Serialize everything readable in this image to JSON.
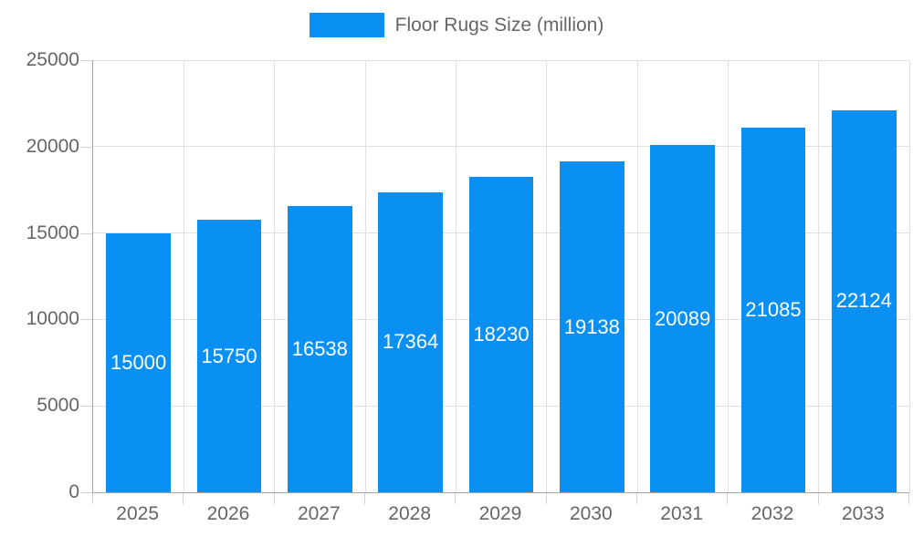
{
  "chart": {
    "legend": {
      "label": "Floor Rugs Size (million)"
    },
    "colors": {
      "bar": "#0a90f2",
      "grid": "#e0e0e0",
      "tick": "#d2d2d2",
      "axis": "#a6a6a6",
      "label_text": "#666666",
      "value_label_text": "#ffffff",
      "background": "#ffffff"
    }
  },
  "chart_data": {
    "type": "bar",
    "title": "",
    "categories": [
      "2025",
      "2026",
      "2027",
      "2028",
      "2029",
      "2030",
      "2031",
      "2032",
      "2033"
    ],
    "series": [
      {
        "name": "Floor Rugs Size (million)",
        "values": [
          15000,
          15750,
          16538,
          17364,
          18230,
          19138,
          20089,
          21085,
          22124
        ]
      }
    ],
    "xlabel": "",
    "ylabel": "",
    "ylim": [
      0,
      25000
    ],
    "yticks": [
      0,
      5000,
      10000,
      15000,
      20000,
      25000
    ],
    "grid": true,
    "legend_position": "top-center",
    "value_labels": "inside-center"
  }
}
